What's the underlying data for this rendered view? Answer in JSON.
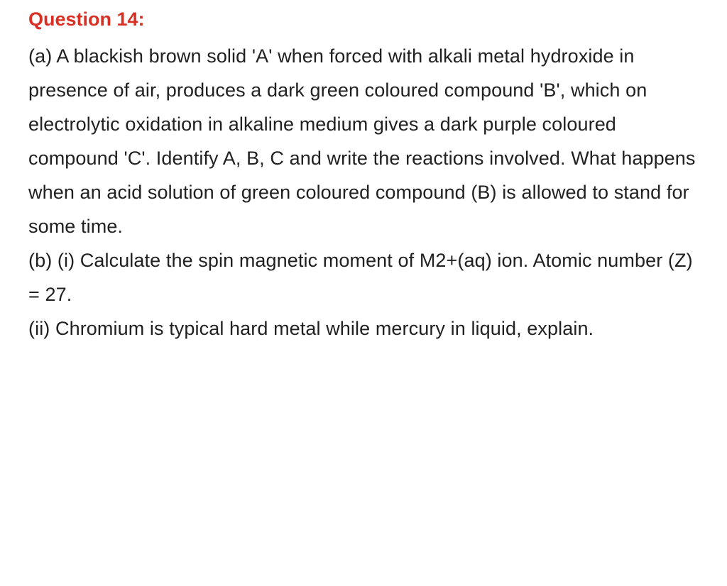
{
  "question": {
    "heading": "Question 14:",
    "part_a": "(a) A blackish brown solid 'A' when forced with alkali metal hydroxide in presence of air, produces a dark green coloured compound 'B', which on electrolytic oxidation in alkaline medium gives a dark purple coloured compound 'C'. Identify A, B, C and write the reactions involved. What happens when an acid solution of green coloured compound (B) is allowed to stand for some time.",
    "part_b_i": "(b) (i) Calculate the spin magnetic moment of M2+(aq) ion. Atomic number (Z) = 27.",
    "part_b_ii": "(ii) Chromium is typical hard metal while mercury in liquid, explain."
  },
  "colors": {
    "heading": "#d93025",
    "text": "#212121",
    "background": "#ffffff"
  },
  "typography": {
    "heading_fontsize": 27,
    "heading_weight": 700,
    "body_fontsize": 27,
    "line_height": 1.78,
    "font_family": "Arial"
  }
}
